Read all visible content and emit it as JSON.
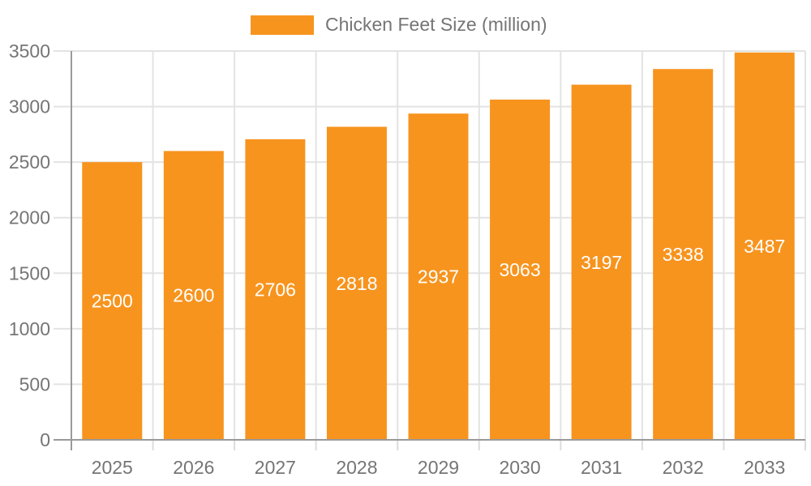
{
  "page": {
    "background_color": "#FFFFFF"
  },
  "legend": {
    "label": "Chicken Feet Size (million)",
    "swatch_color": "#F7941E",
    "position": "top-center"
  },
  "chart_data": {
    "type": "bar",
    "title": "Chicken Feet Size (million)",
    "xlabel": "",
    "ylabel": "",
    "categories": [
      "2025",
      "2026",
      "2027",
      "2028",
      "2029",
      "2030",
      "2031",
      "2032",
      "2033"
    ],
    "values": [
      2500,
      2600,
      2706,
      2818,
      2937,
      3063,
      3197,
      3338,
      3487
    ],
    "bar_labels": [
      "2500",
      "2600",
      "2706",
      "2818",
      "2937",
      "3063",
      "3197",
      "3338",
      "3487"
    ],
    "ylim": [
      0,
      3500
    ],
    "ytick_step": 500,
    "yticks": [
      0,
      500,
      1000,
      1500,
      2000,
      2500,
      3000,
      3500
    ],
    "grid": true,
    "legend_position": "top",
    "colors": {
      "bar": "#F7941E",
      "bar_label_text": "#FFFFFF",
      "axis_text": "#757575",
      "axis_line": "#9A9A9A",
      "grid_line": "#E3E3E3",
      "x_boundary_tick": "#DCDCDC"
    }
  }
}
